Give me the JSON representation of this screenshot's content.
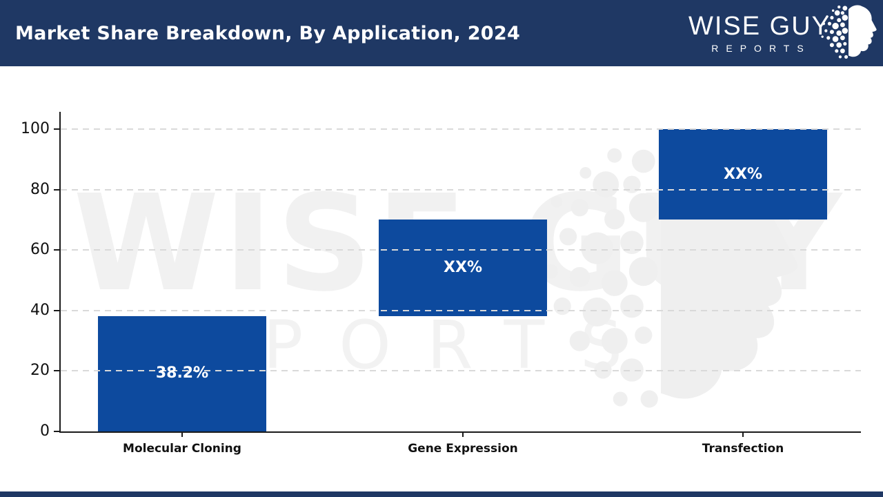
{
  "header": {
    "title": "Market Share Breakdown, By Application, 2024",
    "logo": {
      "line1": "WISE GUY",
      "line2": "REPORTS"
    }
  },
  "watermark": {
    "line1": "WISE GUY",
    "line2": "REPORTS"
  },
  "chart_data": {
    "type": "bar",
    "subtype": "waterfall-stacked-percentage",
    "title": "Market Share Breakdown, By Application, 2024",
    "categories": [
      "Molecular Cloning",
      "Gene Expression",
      "Transfection"
    ],
    "segments": [
      {
        "category": "Molecular Cloning",
        "start": 0,
        "end": 38.2,
        "label": "38.2%"
      },
      {
        "category": "Gene Expression",
        "start": 38.2,
        "end": 70,
        "label": "XX%"
      },
      {
        "category": "Transfection",
        "start": 70,
        "end": 100,
        "label": "XX%"
      }
    ],
    "bar_labels": [
      "38.2%",
      "XX%",
      "XX%"
    ],
    "yticks": [
      0,
      20,
      40,
      60,
      80,
      100
    ],
    "ylim": [
      0,
      105.7
    ],
    "xlabel": "",
    "ylabel": "",
    "grid": "horizontal-dashed",
    "legend": "none",
    "bar_color": "#0d4a9e"
  },
  "colors": {
    "header_bg": "#1f3864",
    "footer_bar": "#1f3864",
    "bar": "#0d4a9e",
    "grid": "#d9d9d9",
    "axis": "#1a1a1a",
    "watermark_text": "#f1f1f1",
    "watermark_face": "#efefef",
    "title_text": "#ffffff",
    "bar_label_text": "#ffffff",
    "tick_label_text": "#111111"
  }
}
